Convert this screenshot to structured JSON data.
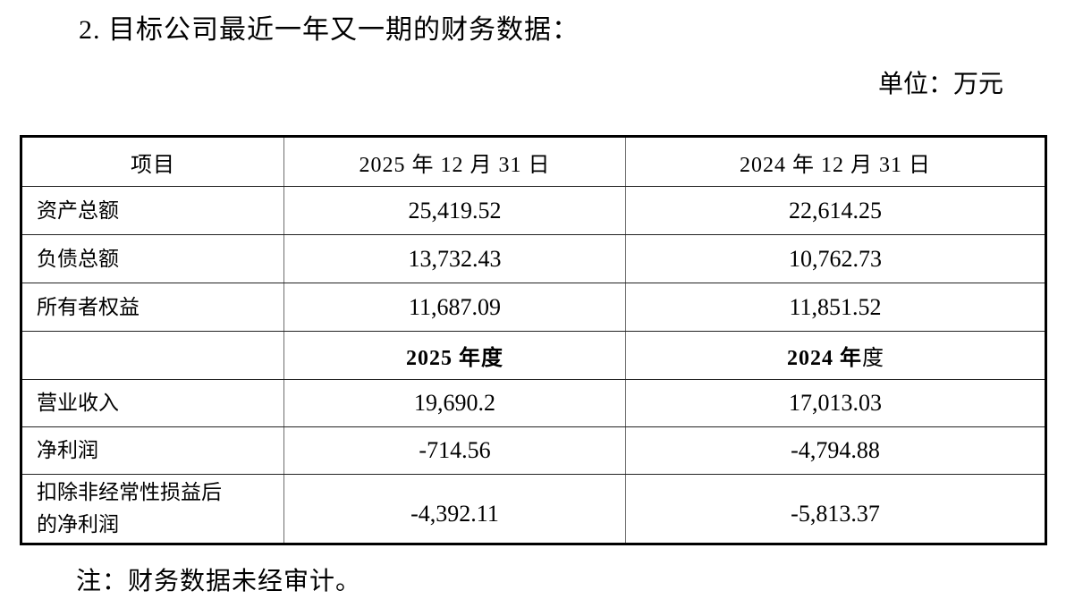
{
  "page": {
    "title": "2. 目标公司最近一年又一期的财务数据：",
    "unit_label": "单位：万元",
    "note": "注：财务数据未经审计。"
  },
  "table": {
    "header": {
      "item": "项目",
      "date_2025": "2025 年 12 月 31 日",
      "date_2024": "2024 年 12 月 31 日"
    },
    "balance_rows": [
      {
        "label": "资产总额",
        "v2025": "25,419.52",
        "v2024": "22,614.25"
      },
      {
        "label": "负债总额",
        "v2025": "13,732.43",
        "v2024": "10,762.73"
      },
      {
        "label": "所有者权益",
        "v2025": "11,687.09",
        "v2024": "11,851.52"
      }
    ],
    "period_header": {
      "y2025": "2025 年度",
      "y2024_bold": "2024 年",
      "y2024_regular": "度"
    },
    "income_rows": [
      {
        "label": "营业收入",
        "v2025": "19,690.2",
        "v2024": "17,013.03"
      },
      {
        "label": "净利润",
        "v2025": "-714.56",
        "v2024": "-4,794.88"
      },
      {
        "label": "扣除非经常性损益后\n的净利润",
        "v2025": "-4,392.11",
        "v2024": "-5,813.37"
      }
    ]
  }
}
